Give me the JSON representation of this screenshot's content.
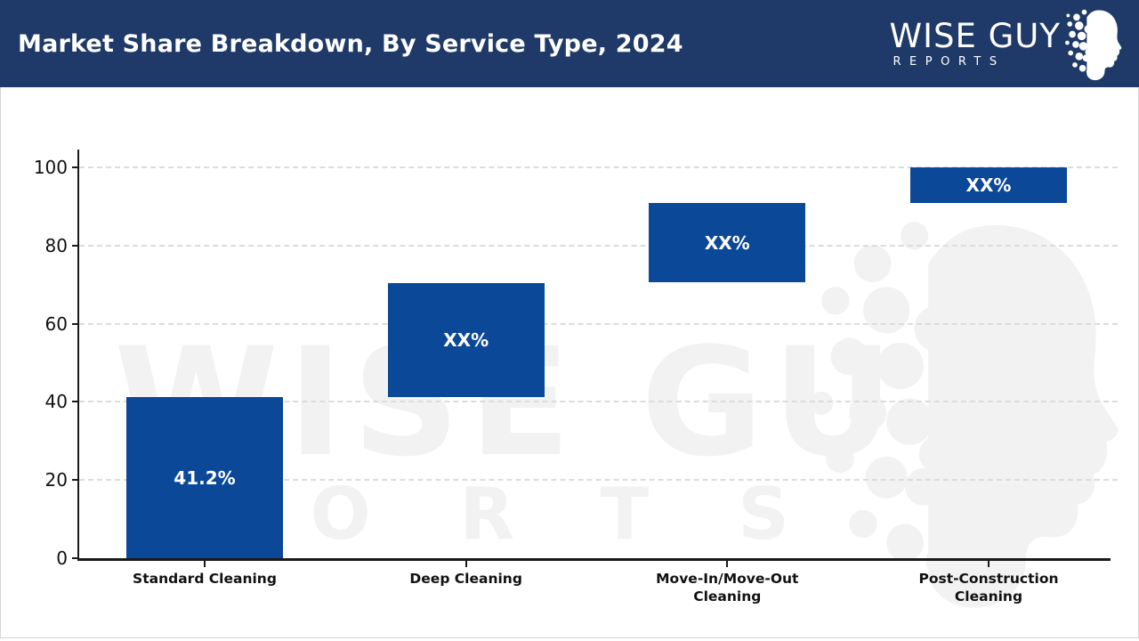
{
  "header": {
    "title": "Market Share Breakdown, By Service Type, 2024",
    "bg_color": "#1f3a68",
    "logo": {
      "line1": "WISE GUY",
      "line2": "REPORTS",
      "face_icon": "dotted-head-profile"
    }
  },
  "watermark": {
    "line1": "WISE GU",
    "line2": "PORTS",
    "face_icon": "dotted-head-profile",
    "color": "#f2f2f2"
  },
  "chart_data": {
    "type": "bar",
    "subtype": "waterfall",
    "title": "Market Share Breakdown, By Service Type, 2024",
    "xlabel": "",
    "ylabel": "",
    "ylim": [
      0,
      100
    ],
    "yticks": [
      0,
      20,
      40,
      60,
      80,
      100
    ],
    "grid": "horizontal dashed",
    "legend": "none",
    "bar_color": "#0b4898",
    "label_color": "#ffffff",
    "axis_color": "#1a1a1a",
    "categories": [
      "Standard Cleaning",
      "Deep Cleaning",
      "Move-In/Move-Out\nCleaning",
      "Post-Construction\nCleaning"
    ],
    "segments": [
      {
        "category": "Standard Cleaning",
        "start": 0,
        "end": 41.2,
        "label": "41.2%"
      },
      {
        "category": "Deep Cleaning",
        "start": 41.2,
        "end": 70.5,
        "label": "XX%"
      },
      {
        "category": "Move-In/Move-Out\nCleaning",
        "start": 70.5,
        "end": 91.0,
        "label": "XX%"
      },
      {
        "category": "Post-Construction\nCleaning",
        "start": 91.0,
        "end": 100.0,
        "label": "XX%"
      }
    ]
  }
}
